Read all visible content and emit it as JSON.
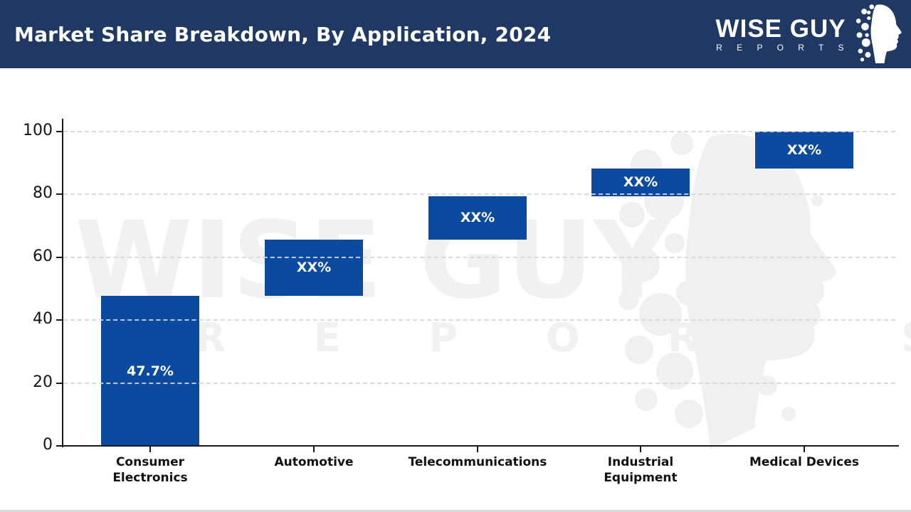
{
  "header": {
    "title": "Market Share Breakdown, By Application, 2024",
    "logo": {
      "name": "WISE GUY",
      "sub": "R E P O R T S"
    }
  },
  "watermark": {
    "big": "WISE GUY",
    "sub": "R E P O R T S"
  },
  "colors": {
    "header_bg": "#203864",
    "bar": "#0b4a9e",
    "grid": "#d9d9d9",
    "axis": "#1a1a1a",
    "bar_label": "#ffffff",
    "watermark": "#f0f0f1"
  },
  "chart_data": {
    "type": "bar",
    "variant": "waterfall",
    "title": "Market Share Breakdown, By Application, 2024",
    "categories": [
      "Consumer Electronics",
      "Automotive",
      "Telecommunications",
      "Industrial Equipment",
      "Medical Devices"
    ],
    "tick_display": [
      "Consumer\nElectronics",
      "Automotive",
      "Telecommunications",
      "Industrial\nEquipment",
      "Medical Devices"
    ],
    "segments": [
      {
        "category": "Consumer Electronics",
        "start": 0,
        "end": 47.7,
        "value": 47.7,
        "label": "47.7%"
      },
      {
        "category": "Automotive",
        "start": 47.7,
        "end": 65.7,
        "value": 18.0,
        "label": "XX%"
      },
      {
        "category": "Telecommunications",
        "start": 65.7,
        "end": 79.5,
        "value": 13.8,
        "label": "XX%"
      },
      {
        "category": "Industrial Equipment",
        "start": 79.5,
        "end": 88.3,
        "value": 8.8,
        "label": "XX%"
      },
      {
        "category": "Medical Devices",
        "start": 88.3,
        "end": 100,
        "value": 11.7,
        "label": "XX%"
      }
    ],
    "xlabel": "",
    "ylabel": "",
    "ylim": [
      0,
      100
    ],
    "yticks": [
      0,
      20,
      40,
      60,
      80,
      100
    ],
    "grid": "horizontal-dashed",
    "legend": "none"
  }
}
